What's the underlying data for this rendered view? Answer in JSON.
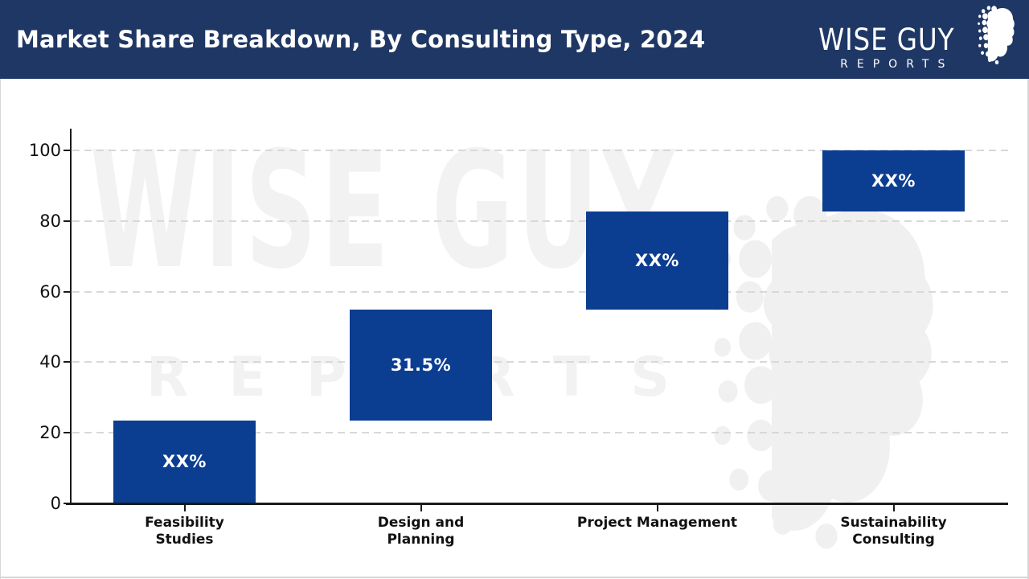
{
  "header": {
    "title": "Market Share Breakdown, By Consulting Type, 2024",
    "logo": {
      "line1": "WISE GUY",
      "line2": "REPORTS"
    }
  },
  "watermark": {
    "line1": "WISE GUY",
    "line2": "REPORTS"
  },
  "chart_data": {
    "type": "bar",
    "subtype": "waterfall-floating-segments",
    "title": "Market Share Breakdown, By Consulting Type, 2024",
    "categories": [
      "Feasibility\nStudies",
      "Design and\nPlanning",
      "Project Management",
      "Sustainability\nConsulting"
    ],
    "segments": [
      {
        "category": "Feasibility Studies",
        "start": 0,
        "end": 23.5,
        "value_label": "XX%"
      },
      {
        "category": "Design and Planning",
        "start": 23.5,
        "end": 55,
        "value_label": "31.5%"
      },
      {
        "category": "Project Management",
        "start": 55,
        "end": 82.8,
        "value_label": "XX%"
      },
      {
        "category": "Sustainability Consulting",
        "start": 82.8,
        "end": 100,
        "value_label": "XX%"
      }
    ],
    "yticks": [
      0,
      20,
      40,
      60,
      80,
      100
    ],
    "ylim": [
      0,
      105
    ],
    "grid": "horizontal-dashed",
    "legend": "none",
    "xlabel": "",
    "ylabel": "",
    "bar_color": "#0b3d91",
    "bar_label_color": "#ffffff"
  },
  "colors": {
    "header_bg": "#1f3764",
    "bar": "#0b3d91",
    "gridline": "#d8d8d8",
    "axis": "#1a1a1a",
    "tick_text": "#111111",
    "watermark": "#f2f2f2",
    "page_border": "#d6d6d6"
  }
}
